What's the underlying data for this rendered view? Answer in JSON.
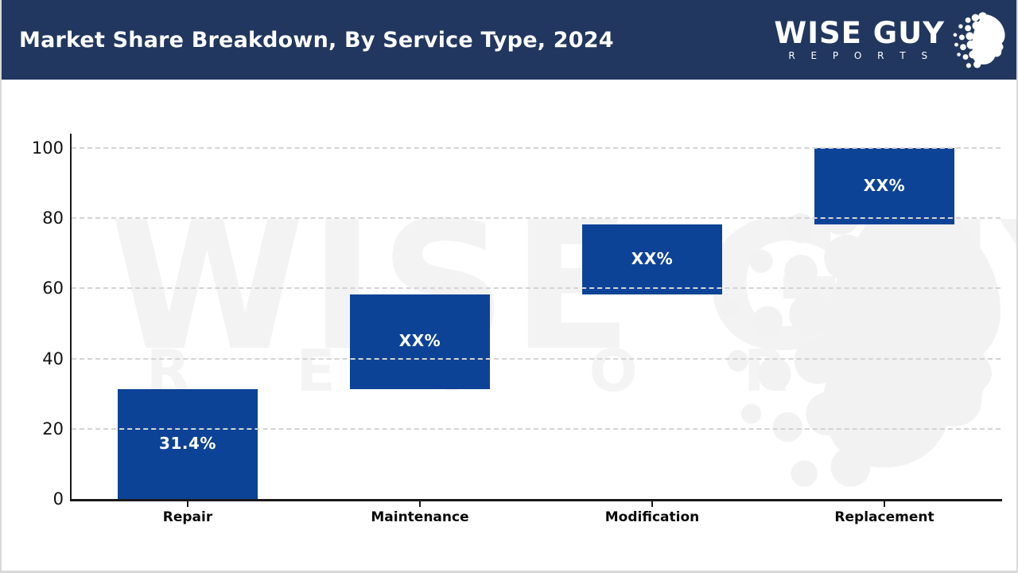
{
  "header": {
    "title": "Market Share Breakdown, By Service Type, 2024",
    "background_color": "#21375f",
    "logo": {
      "wordmark": "WISE GUY",
      "subtitle": "R E P O R T S"
    }
  },
  "watermark": {
    "line1": "WISE GUY",
    "line2": "R E P O R T S"
  },
  "chart_data": {
    "type": "bar",
    "subtype": "waterfall",
    "title": "Market Share Breakdown, By Service Type, 2024",
    "xlabel": "",
    "ylabel": "",
    "ylim": [
      0,
      100
    ],
    "yticks": [
      0,
      20,
      40,
      60,
      80,
      100
    ],
    "grid": true,
    "grid_style": "dashed",
    "legend": "none",
    "bar_color": "#0d4397",
    "bar_label_color": "#ffffff",
    "categories": [
      "Repair",
      "Maintenance",
      "Modification",
      "Replacement"
    ],
    "segments": [
      {
        "category": "Repair",
        "start": 0,
        "end": 31.4,
        "label": "31.4%"
      },
      {
        "category": "Maintenance",
        "start": 31.4,
        "end": 58.2,
        "label": "XX%"
      },
      {
        "category": "Modification",
        "start": 58.2,
        "end": 78.3,
        "label": "XX%"
      },
      {
        "category": "Replacement",
        "start": 78.3,
        "end": 100,
        "label": "XX%"
      }
    ]
  }
}
